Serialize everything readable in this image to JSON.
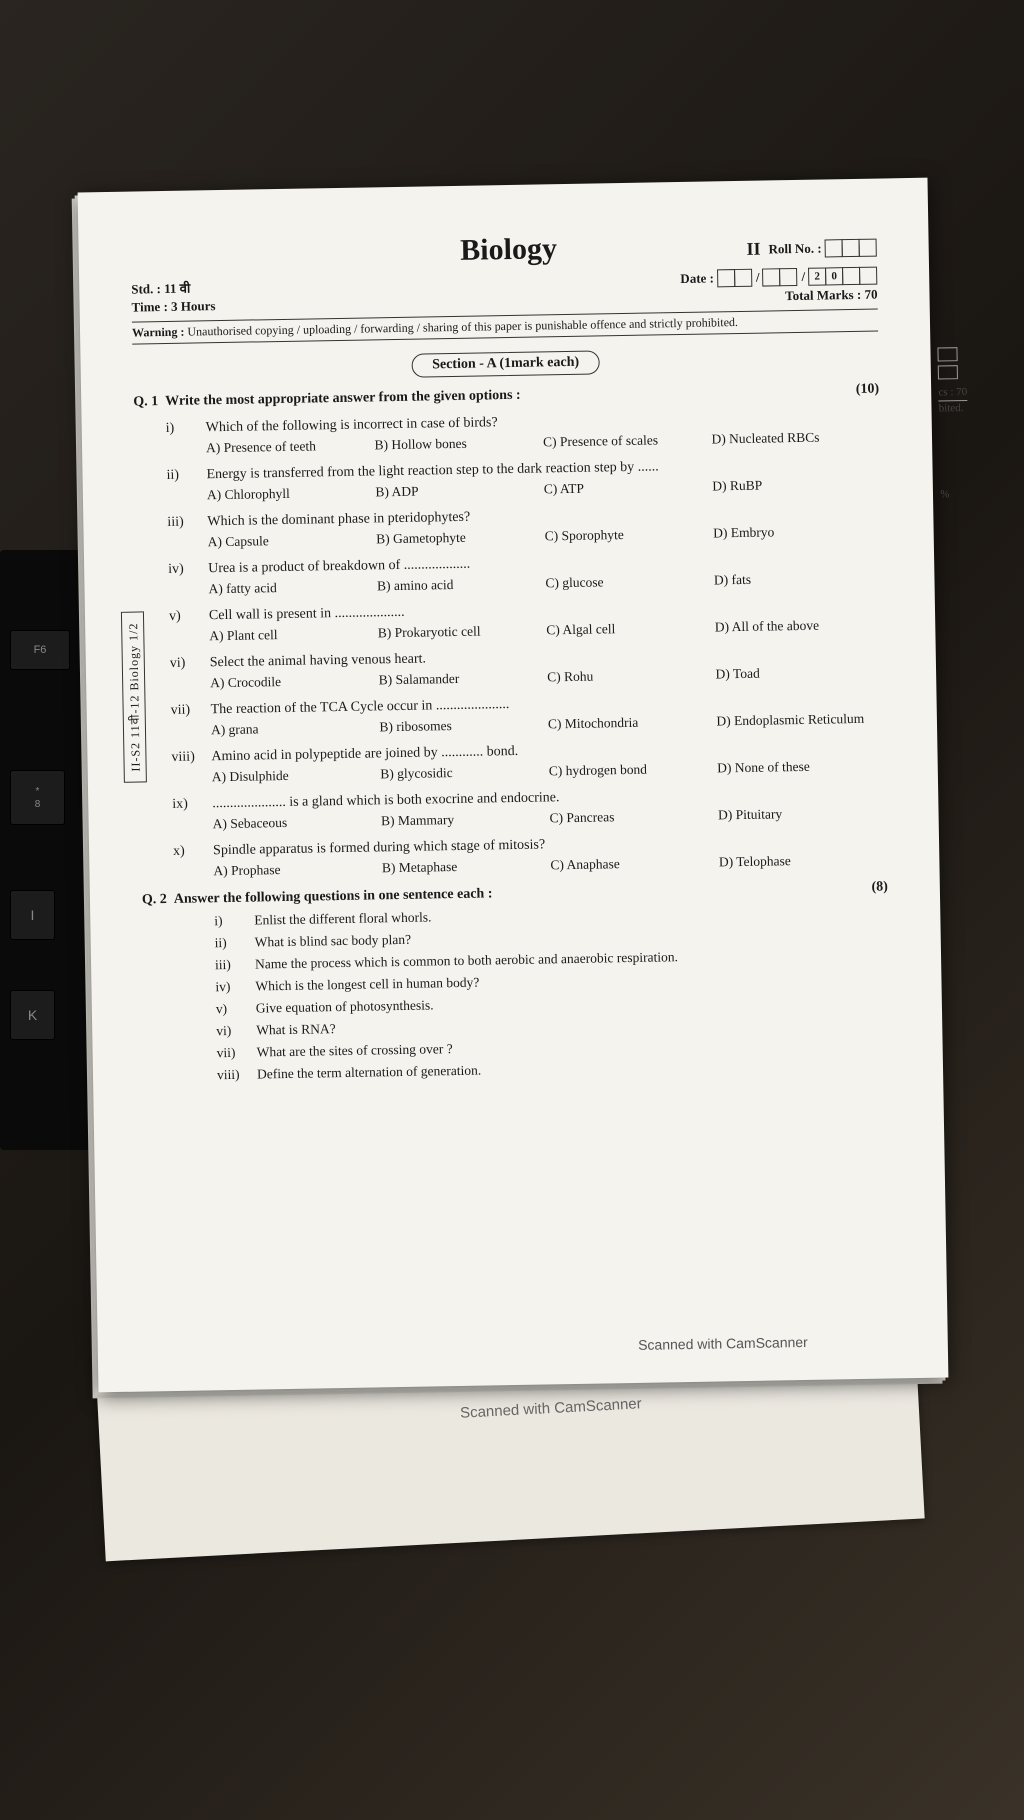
{
  "title": "Biology",
  "paper_code": "II",
  "roll_label": "Roll No. :",
  "std_label": "Std.  :  11 वी",
  "time_label": "Time : 3 Hours",
  "date_label": "Date :",
  "date_year_prefix": [
    "2",
    "0"
  ],
  "total_marks_label": "Total Marks : 70",
  "warning_label": "Warning :",
  "warning_text": "Unauthorised copying / uploading / forwarding / sharing of this paper is punishable offence and strictly prohibited.",
  "section_label": "Section - A  (1mark each)",
  "side_label": "II-S2 11वी-12 Biology 1/2",
  "q1": {
    "num": "Q. 1",
    "text": "Write the most appropriate answer from the given options :",
    "marks": "(10)",
    "items": [
      {
        "n": "i)",
        "q": "Which of the following is incorrect in case of birds?",
        "opts": [
          "A) Presence of teeth",
          "B) Hollow bones",
          "C) Presence of scales",
          "D) Nucleated RBCs"
        ]
      },
      {
        "n": "ii)",
        "q": "Energy is transferred from the light reaction step to the dark reaction step by ......",
        "opts": [
          "A) Chlorophyll",
          "B) ADP",
          "C) ATP",
          "D) RuBP"
        ]
      },
      {
        "n": "iii)",
        "q": "Which is the dominant phase in pteridophytes?",
        "opts": [
          "A) Capsule",
          "B) Gametophyte",
          "C) Sporophyte",
          "D) Embryo"
        ]
      },
      {
        "n": "iv)",
        "q": "Urea is a product of breakdown of ...................",
        "opts": [
          "A) fatty acid",
          "B) amino acid",
          "C) glucose",
          "D) fats"
        ]
      },
      {
        "n": "v)",
        "q": "Cell wall is present in ....................",
        "opts": [
          "A) Plant cell",
          "B) Prokaryotic cell",
          "C) Algal cell",
          "D) All of the above"
        ]
      },
      {
        "n": "vi)",
        "q": "Select the animal having venous heart.",
        "opts": [
          "A) Crocodile",
          "B) Salamander",
          "C) Rohu",
          "D) Toad"
        ]
      },
      {
        "n": "vii)",
        "q": "The reaction of the TCA Cycle occur in .....................",
        "opts": [
          "A) grana",
          "B) ribosomes",
          "C) Mitochondria",
          "D) Endoplasmic Reticulum"
        ]
      },
      {
        "n": "viii)",
        "q": "Amino acid in polypeptide are joined by ............ bond.",
        "opts": [
          "A) Disulphide",
          "B) glycosidic",
          "C) hydrogen bond",
          "D) None of these"
        ]
      },
      {
        "n": "ix)",
        "q": "..................... is a gland which is both exocrine and endocrine.",
        "opts": [
          "A) Sebaceous",
          "B) Mammary",
          "C) Pancreas",
          "D) Pituitary"
        ]
      },
      {
        "n": "x)",
        "q": "Spindle apparatus is formed during which stage of mitosis?",
        "opts": [
          "A) Prophase",
          "B) Metaphase",
          "C) Anaphase",
          "D) Telophase"
        ]
      }
    ]
  },
  "q2": {
    "num": "Q. 2",
    "text": "Answer the following questions in one sentence each :",
    "marks": "(8)",
    "items": [
      {
        "n": "i)",
        "t": "Enlist the different floral whorls."
      },
      {
        "n": "ii)",
        "t": "What is blind sac body plan?"
      },
      {
        "n": "iii)",
        "t": "Name the process which is common to both aerobic and anaerobic respiration."
      },
      {
        "n": "iv)",
        "t": "Which is the longest cell in human body?"
      },
      {
        "n": "v)",
        "t": "Give equation of photosynthesis."
      },
      {
        "n": "vi)",
        "t": "What is RNA?"
      },
      {
        "n": "vii)",
        "t": "What are the sites of crossing over ?"
      },
      {
        "n": "viii)",
        "t": "Define the term alternation of generation."
      }
    ]
  },
  "side_peek": {
    "marks": "cs : 70",
    "note": "bited.",
    "pct": "%"
  },
  "scan": "Scanned with CamScanner",
  "keys": {
    "f6": "F6",
    "star": "*",
    "eight": "8",
    "i": "I",
    "k": "K"
  }
}
